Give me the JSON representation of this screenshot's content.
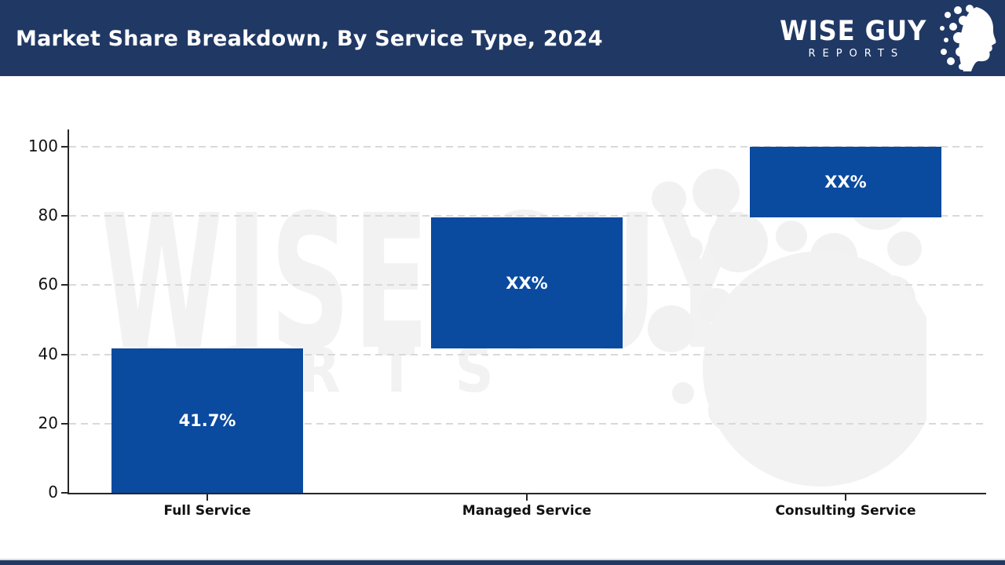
{
  "header": {
    "title": "Market Share Breakdown, By Service Type, 2024",
    "logo": {
      "line1": "WISE GUY",
      "line2": "REPORTS"
    }
  },
  "watermark": {
    "line1": "WISE GUY",
    "line2": "PORTS"
  },
  "colors": {
    "header_bg": "#203864",
    "bar": "#0a4a9f",
    "bar_label": "#ffffff",
    "grid": "#d9d9d9",
    "axis": "#262626",
    "watermark": "#f2f2f2"
  },
  "chart_data": {
    "type": "bar",
    "subtype": "waterfall",
    "title": "Market Share Breakdown, By Service Type, 2024",
    "categories": [
      "Full Service",
      "Managed Service",
      "Consulting Service"
    ],
    "segments": [
      {
        "category": "Full Service",
        "label": "41.7%",
        "start": 0,
        "end": 41.7
      },
      {
        "category": "Managed Service",
        "label": "XX%",
        "start": 41.7,
        "end": 79.5
      },
      {
        "category": "Consulting Service",
        "label": "XX%",
        "start": 79.6,
        "end": 100
      }
    ],
    "y_ticks": [
      0,
      20,
      40,
      60,
      80,
      100
    ],
    "ylim": [
      0,
      105
    ],
    "xlabel": "",
    "ylabel": "",
    "grid": "horizontal-dashed",
    "legend": "none"
  }
}
